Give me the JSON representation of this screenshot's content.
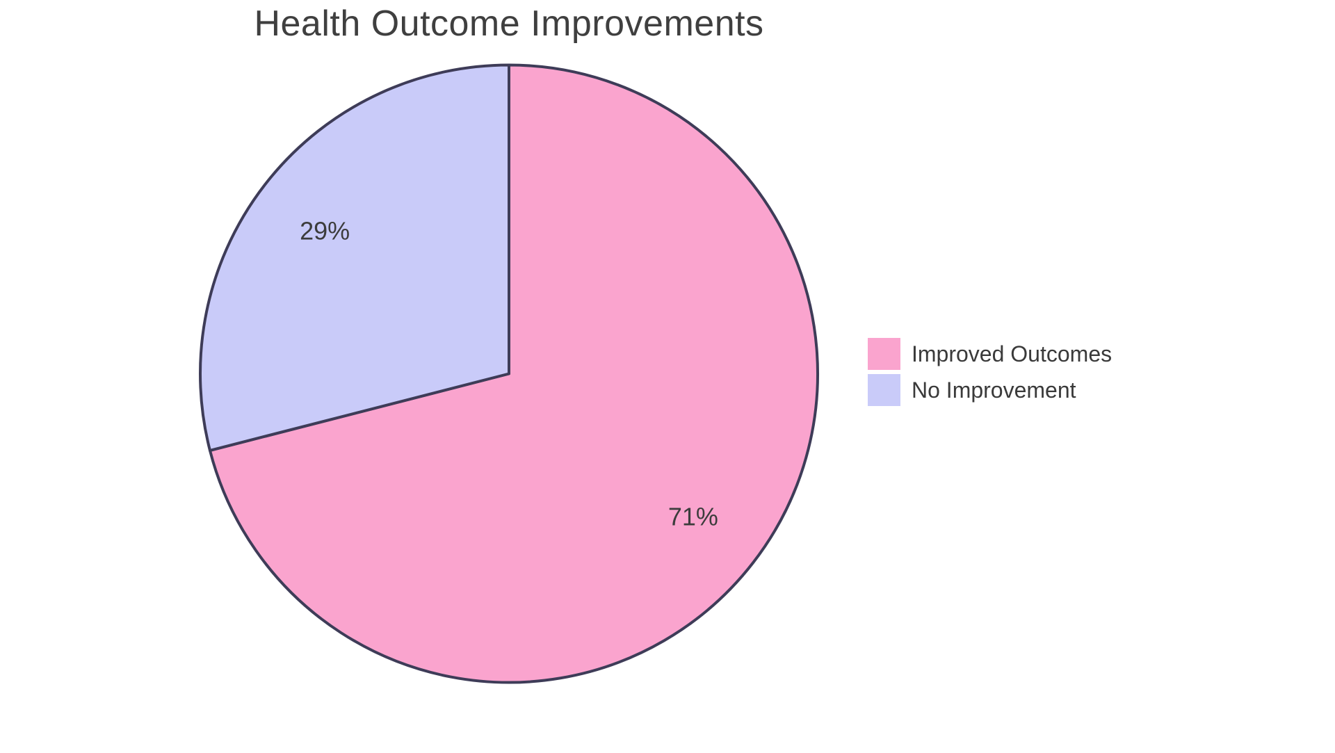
{
  "chart_data": {
    "type": "pie",
    "title": "Health Outcome Improvements",
    "slices": [
      {
        "name": "Improved Outcomes",
        "value": 71,
        "percent_label": "71%",
        "color": "#FAA4CE"
      },
      {
        "name": "No Improvement",
        "value": 29,
        "percent_label": "29%",
        "color": "#C9CBF9"
      }
    ],
    "start_angle": "top",
    "direction": "clockwise",
    "outline_color": "#3E3C58",
    "percent_label_color": "#3C3C3C",
    "title_color": "#3F3F3F",
    "legend_position": "right"
  }
}
